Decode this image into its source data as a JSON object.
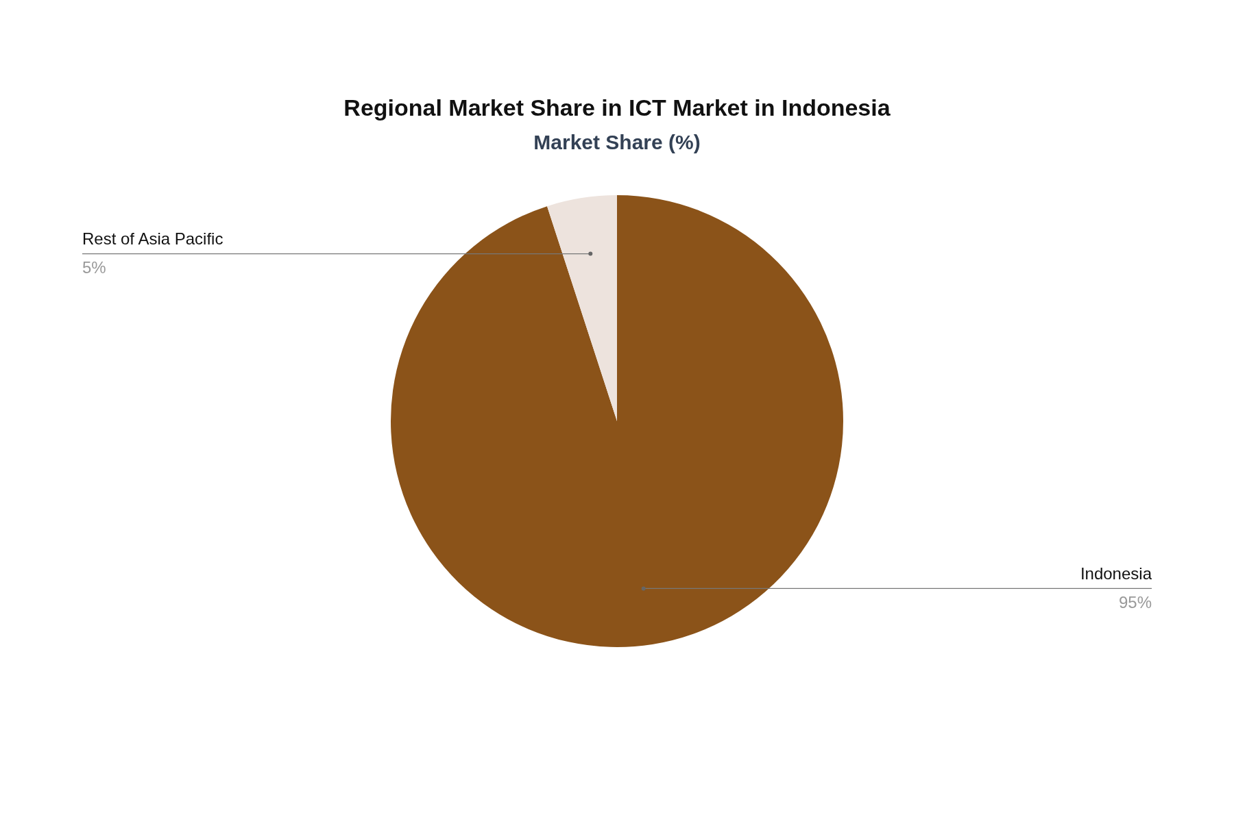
{
  "chart_data": {
    "type": "pie",
    "title": "Regional Market Share in ICT Market in Indonesia",
    "subtitle": "Market Share (%)",
    "categories": [
      "Indonesia",
      "Rest of Asia Pacific"
    ],
    "values": [
      95,
      5
    ],
    "colors": [
      "#8b5319",
      "#ede3dd"
    ],
    "value_labels": [
      "95%",
      "5%"
    ],
    "legend": false
  }
}
